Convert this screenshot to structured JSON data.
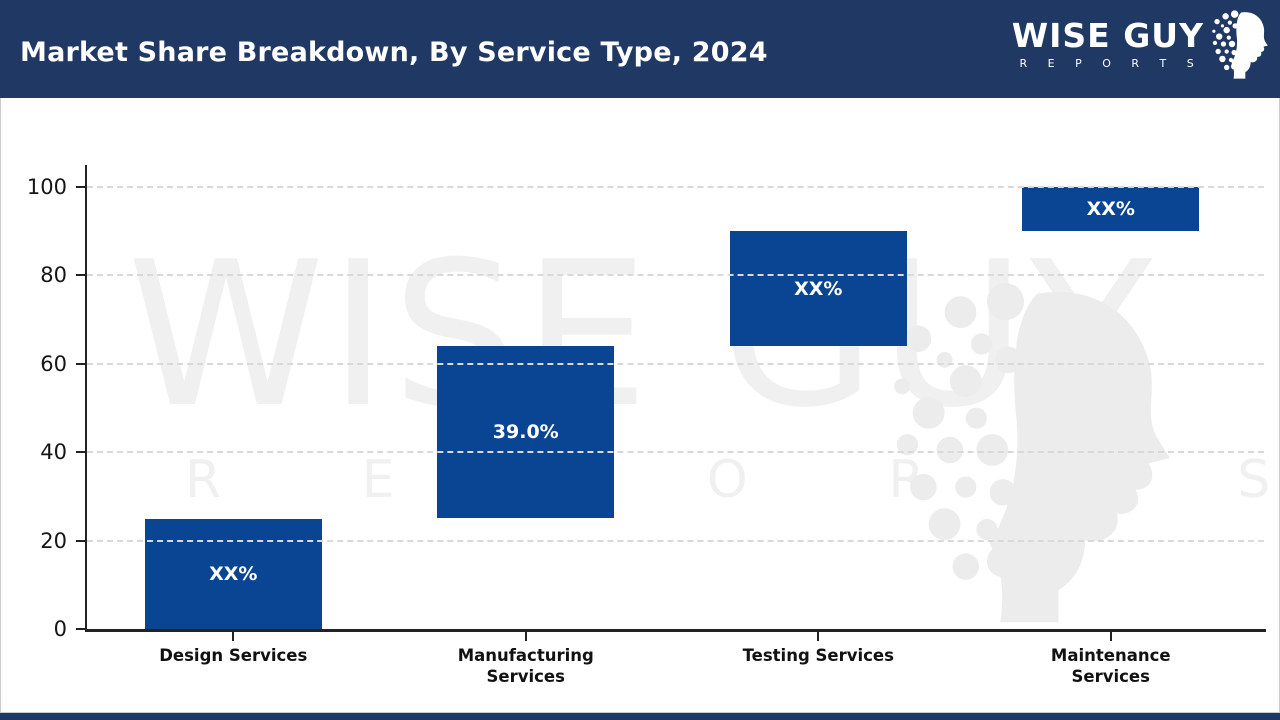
{
  "header": {
    "title": "Market Share Breakdown, By Service Type, 2024",
    "logo": {
      "line1": "WISE GUY",
      "line2": "R E P O R T S"
    }
  },
  "watermark": {
    "line1": "WISE GUY",
    "line2": "R E P O R T S"
  },
  "colors": {
    "header_bg": "#1f3864",
    "footer_bg": "#1f3864",
    "bar": "#0a4593",
    "grid": "#d9d9d9",
    "axis": "#222222",
    "bar_label": "#ffffff",
    "tick_label": "#151515",
    "watermark_text": "#f0f0f0",
    "watermark_face": "#ececec"
  },
  "chart_data": {
    "type": "bar",
    "subtype": "waterfall",
    "title": "Market Share Breakdown, By Service Type, 2024",
    "categories": [
      "Design Services",
      "Manufacturing Services",
      "Testing Services",
      "Maintenance Services"
    ],
    "segments": [
      {
        "category": "Design Services",
        "start": 0,
        "end": 25,
        "value": 25,
        "label": "XX%"
      },
      {
        "category": "Manufacturing Services",
        "start": 25,
        "end": 64,
        "value": 39,
        "label": "39.0%"
      },
      {
        "category": "Testing Services",
        "start": 64,
        "end": 90,
        "value": 26,
        "label": "XX%"
      },
      {
        "category": "Maintenance Services",
        "start": 90,
        "end": 100,
        "value": 10,
        "label": "XX%"
      }
    ],
    "xlabel": "",
    "ylabel": "",
    "ylim": [
      0,
      100
    ],
    "yticks": [
      0,
      20,
      40,
      60,
      80,
      100
    ],
    "grid": "horizontal-dashed-over-bars",
    "legend": "none"
  }
}
